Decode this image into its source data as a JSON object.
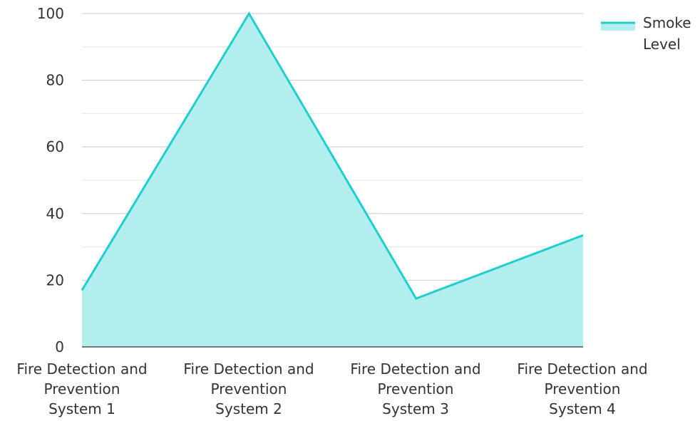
{
  "chart_data": {
    "type": "area",
    "categories": [
      [
        "Fire Detection and",
        "Prevention",
        "System 1"
      ],
      [
        "Fire Detection and",
        "Prevention",
        "System 2"
      ],
      [
        "Fire Detection and",
        "Prevention",
        "System 3"
      ],
      [
        "Fire Detection and",
        "Prevention",
        "System 4"
      ]
    ],
    "series": [
      {
        "name": "Smoke Level",
        "values": [
          17,
          100,
          14.5,
          33.5
        ]
      }
    ],
    "ylim": [
      0,
      100
    ],
    "yticks": [
      "0",
      "20",
      "40",
      "60",
      "80",
      "100"
    ],
    "grid": true,
    "legend_position": "top-right",
    "colors": {
      "line": "#1ecfcf",
      "fill": "#b2eeee",
      "grid": "#cccccc",
      "minor_grid": "#e6e6e6"
    }
  }
}
